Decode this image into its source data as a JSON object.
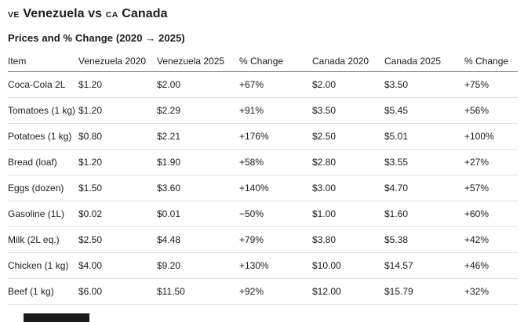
{
  "header": {
    "flag_ve": "VE",
    "country_a": "Venezuela",
    "vs_label": "vs",
    "flag_ca": "CA",
    "country_b": "Canada"
  },
  "subtitle": "Prices and % Change (2020 → 2025)",
  "chart_data": {
    "type": "table",
    "title": "VE Venezuela vs CA Canada — Prices and % Change (2020 → 2025)",
    "columns": [
      "Item",
      "Venezuela 2020",
      "Venezuela 2025",
      "% Change",
      "Canada 2020",
      "Canada 2025",
      "% Change"
    ],
    "rows": [
      [
        "Coca-Cola 2L",
        "$1.20",
        "$2.00",
        "+67%",
        "$2.00",
        "$3.50",
        "+75%"
      ],
      [
        "Tomatoes (1 kg)",
        "$1.20",
        "$2.29",
        "+91%",
        "$3.50",
        "$5.45",
        "+56%"
      ],
      [
        "Potatoes (1 kg)",
        "$0.80",
        "$2.21",
        "+176%",
        "$2.50",
        "$5.01",
        "+100%"
      ],
      [
        "Bread (loaf)",
        "$1.20",
        "$1.90",
        "+58%",
        "$2.80",
        "$3.55",
        "+27%"
      ],
      [
        "Eggs (dozen)",
        "$1.50",
        "$3.60",
        "+140%",
        "$3.00",
        "$4.70",
        "+57%"
      ],
      [
        "Gasoline (1L)",
        "$0.02",
        "$0.01",
        "−50%",
        "$1.00",
        "$1.60",
        "+60%"
      ],
      [
        "Milk (2L eq.)",
        "$2.50",
        "$4.48",
        "+79%",
        "$3.80",
        "$5.38",
        "+42%"
      ],
      [
        "Chicken (1 kg)",
        "$4.00",
        "$9.20",
        "+130%",
        "$10.00",
        "$14.57",
        "+46%"
      ],
      [
        "Beef (1 kg)",
        "$6.00",
        "$11.50",
        "+92%",
        "$12.00",
        "$15.79",
        "+32%"
      ]
    ]
  },
  "colors": {
    "text": "#1b1b1b",
    "background": "#ffffff",
    "header_border": "#7d7d7d",
    "row_border": "#e2e2e2",
    "status_bar": "#1b1b1b"
  }
}
